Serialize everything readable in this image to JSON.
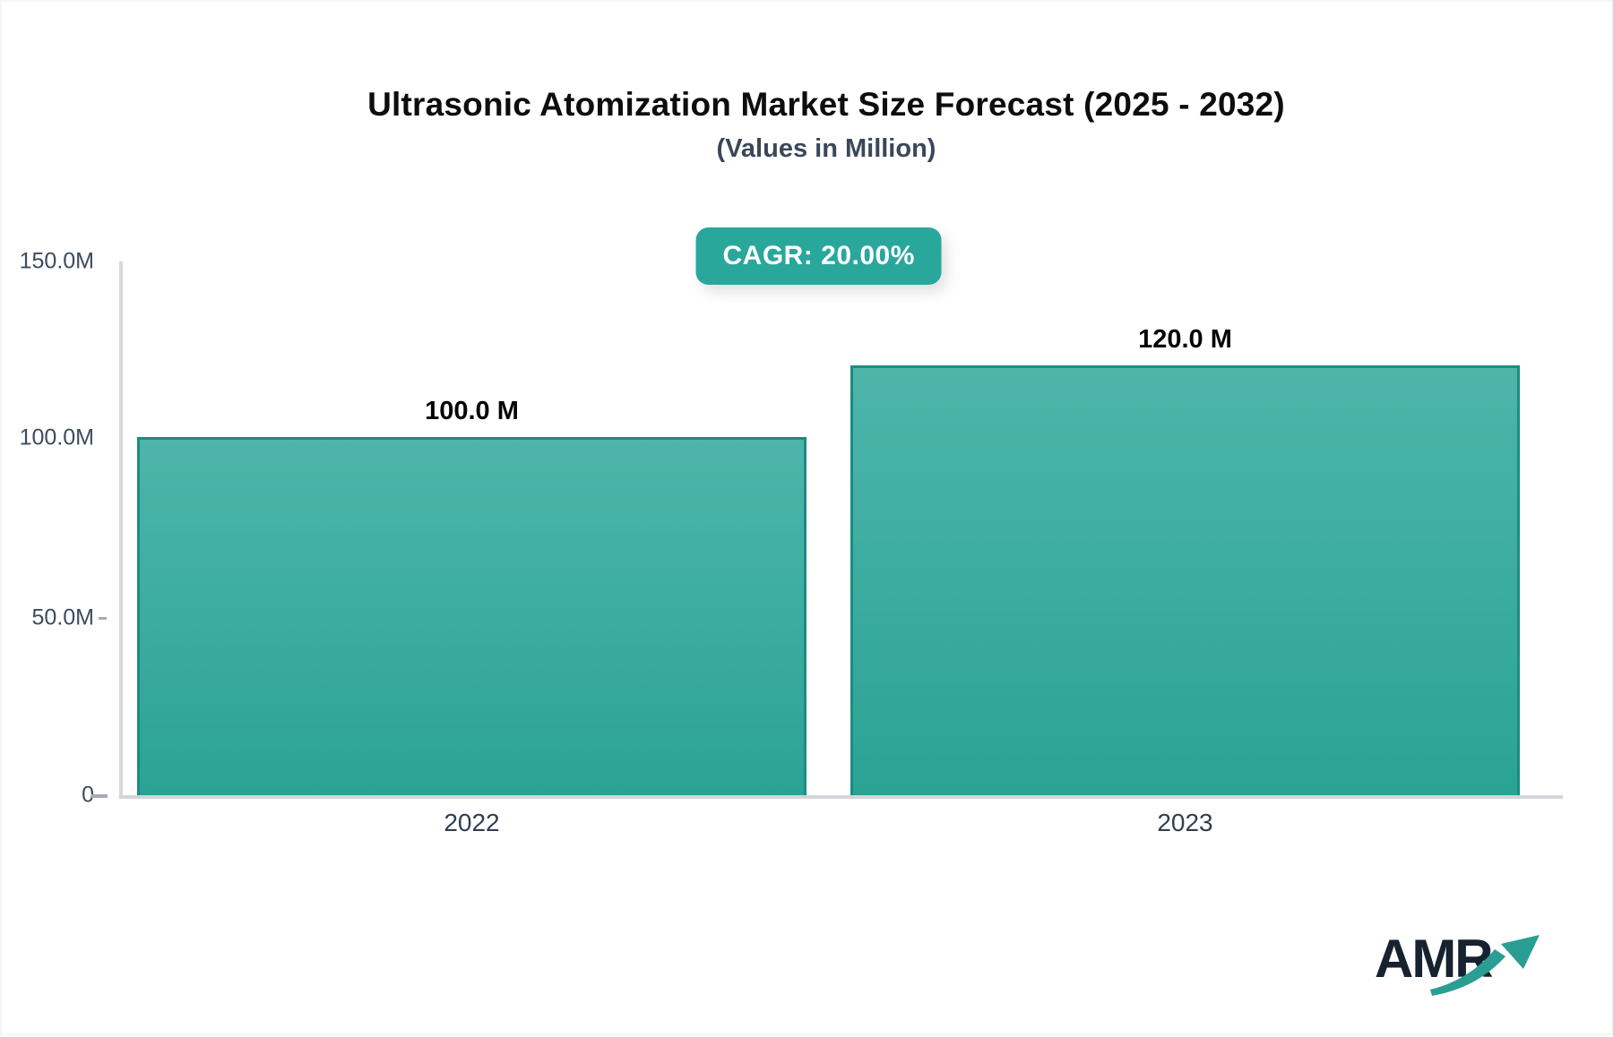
{
  "header": {
    "title": "Ultrasonic Atomization Market Size Forecast (2025 - 2032)",
    "subtitle": "(Values in Million)",
    "cagr_label": "CAGR: 20.00%"
  },
  "chart_data": {
    "type": "bar",
    "title": "Ultrasonic Atomization Market Size Forecast (2025 - 2032)",
    "subtitle": "(Values in Million)",
    "categories": [
      "2022",
      "2023"
    ],
    "values": [
      100.0,
      120.0
    ],
    "bar_labels": [
      "100.0 M",
      "120.0 M"
    ],
    "cagr": "20.00%",
    "y_ticks": [
      "150.0M",
      "100.0M",
      "50.0M",
      "0"
    ],
    "y_tick_values": [
      150,
      100,
      50,
      0
    ],
    "ylim": [
      0,
      150
    ],
    "xlabel": "",
    "ylabel": "",
    "grid": false,
    "legend": "none",
    "bar_color_top": "#4eb5ab",
    "bar_color_bottom": "#2aa394",
    "bar_border_color": "#1c8c82"
  },
  "colors": {
    "accent_teal": "#2aa79b",
    "title_text": "#0d0d0d",
    "subtitle_text": "#3b4759",
    "axis_text": "#3d4b60",
    "axis_line": "#d6d8de",
    "logo_text": "#16222f",
    "logo_arrow": "#2a9e93"
  },
  "branding": {
    "logo_text": "AMR",
    "logo_arrow_icon": "trending-up-arrow"
  }
}
